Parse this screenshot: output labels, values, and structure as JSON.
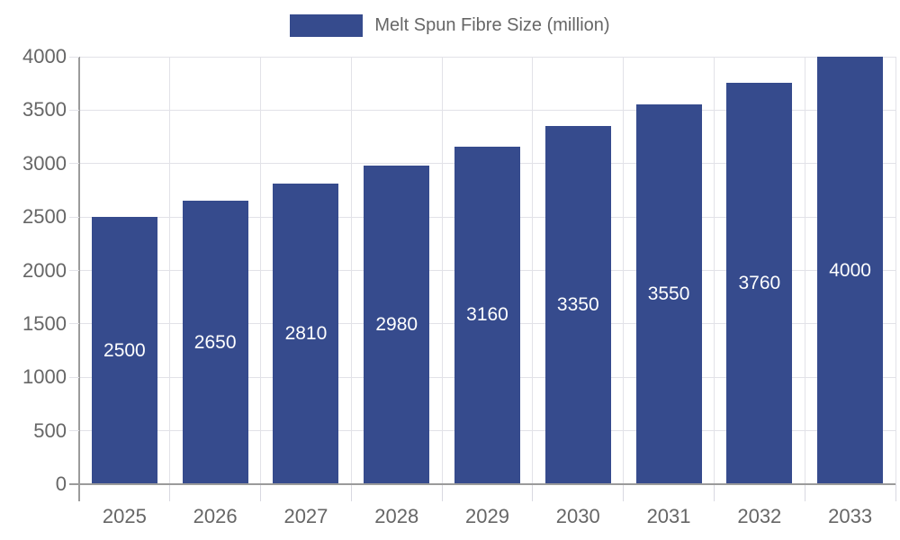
{
  "chart_data": {
    "type": "bar",
    "title": "Melt Spun Fibre Size (million)",
    "legend": {
      "label": "Melt Spun Fibre Size (million)",
      "position": "top-center"
    },
    "categories": [
      "2025",
      "2026",
      "2027",
      "2028",
      "2029",
      "2030",
      "2031",
      "2032",
      "2033"
    ],
    "values": [
      2500,
      2650,
      2810,
      2980,
      3160,
      3350,
      3550,
      3760,
      4000
    ],
    "data_labels_shown": true,
    "xlabel": "",
    "ylabel": "",
    "ylim": [
      0,
      4000
    ],
    "yticks": [
      0,
      500,
      1000,
      1500,
      2000,
      2500,
      3000,
      3500,
      4000
    ],
    "grid": true,
    "colors": {
      "bar": "#364B8D",
      "bar_label_text": "#FFFFFF",
      "grid_line": "#E2E2E8",
      "axis_line": "#9B9B9B",
      "axis_tick_minor": "#D8D8E1",
      "tick_label_text": "#666666",
      "legend_text": "#666666",
      "background": "#FFFFFF"
    }
  }
}
